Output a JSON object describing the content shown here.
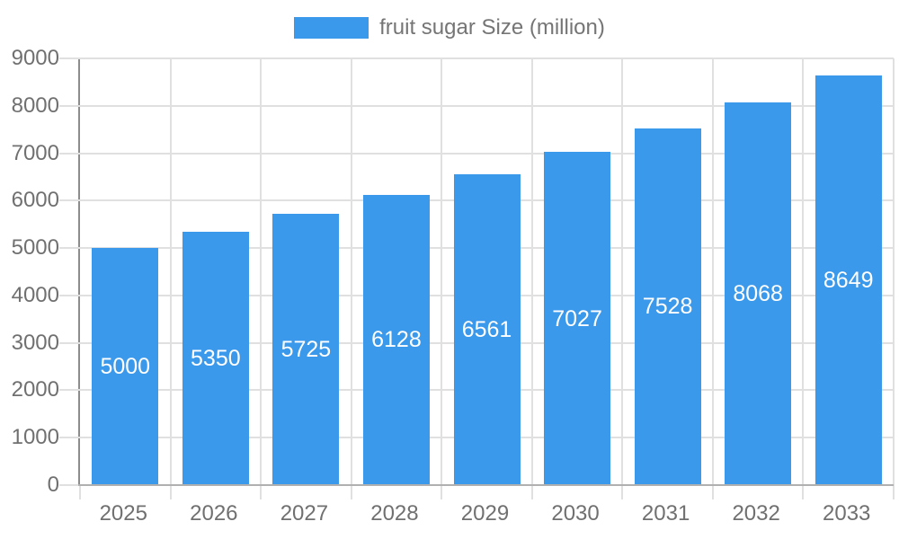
{
  "chart_data": {
    "type": "bar",
    "categories": [
      "2025",
      "2026",
      "2027",
      "2028",
      "2029",
      "2030",
      "2031",
      "2032",
      "2033"
    ],
    "series": [
      {
        "name": "fruit sugar Size (million)",
        "values": [
          5000,
          5350,
          5725,
          6128,
          6561,
          7027,
          7528,
          8068,
          8649
        ]
      }
    ],
    "title": "",
    "xlabel": "",
    "ylabel": "",
    "ylim": [
      0,
      9000
    ],
    "ytick_step": 1000,
    "grid": true,
    "legend_position": "top-center",
    "value_labels": "inside-middle",
    "colors": {
      "bar": "#3B99EC",
      "grid": "#E0E0E0",
      "y_axis_line": "#8C8C8C",
      "x_axis_line": "#B0B0B0",
      "axis_text": "#707070",
      "value_text": "#FFFFFF",
      "legend_text": "#757575",
      "background": "#FFFFFF"
    }
  }
}
